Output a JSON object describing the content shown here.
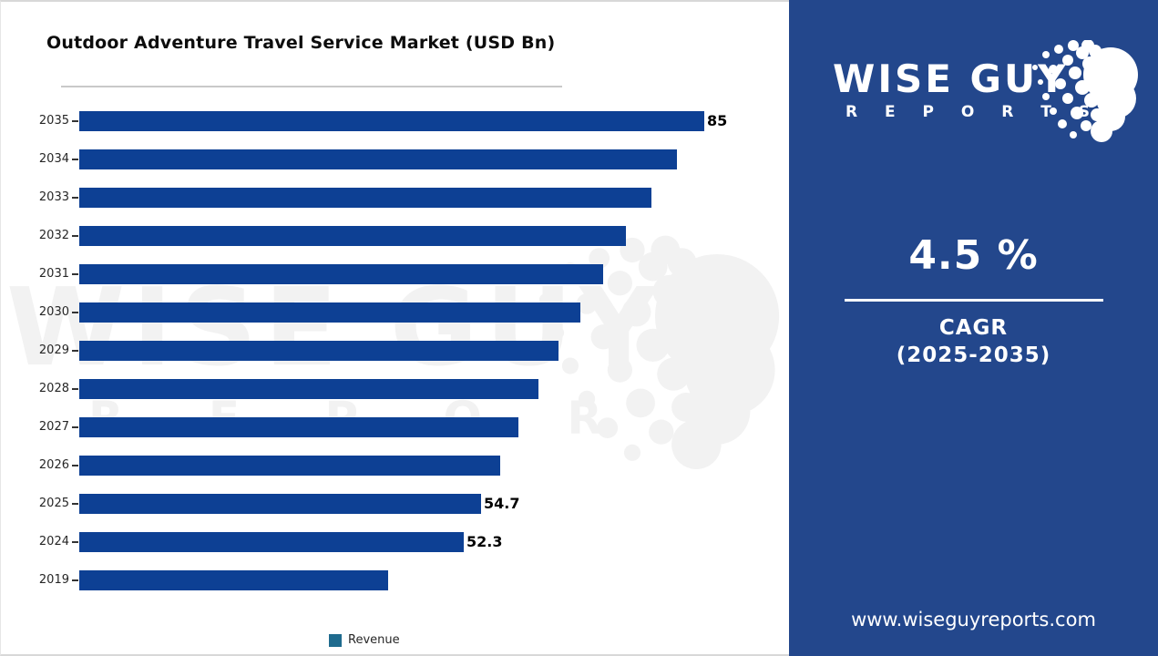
{
  "title": "Outdoor Adventure Travel Service Market (USD Bn)",
  "legend": {
    "label": "Revenue"
  },
  "colors": {
    "bar": "#0d4094",
    "legend_marker": "#1f6b8e",
    "panel_background": "#23478c",
    "watermark": "#f2f2f2"
  },
  "chart_data": {
    "type": "bar",
    "orientation": "horizontal",
    "title": "Outdoor Adventure Travel Service Market (USD Bn)",
    "categories": [
      "2035",
      "2034",
      "2033",
      "2032",
      "2031",
      "2030",
      "2029",
      "2028",
      "2027",
      "2026",
      "2025",
      "2024",
      "2019"
    ],
    "series": [
      {
        "name": "Revenue",
        "values": [
          85,
          81.3,
          77.8,
          74.4,
          71.2,
          68.2,
          65.2,
          62.4,
          59.7,
          57.2,
          54.7,
          52.3,
          42
        ]
      }
    ],
    "value_labels": {
      "2035": "85",
      "2025": "54.7",
      "2024": "52.3"
    },
    "xlim": [
      0,
      85
    ],
    "grid": false,
    "legend_position": "bottom-center"
  },
  "brand_panel": {
    "logo_line1": "WISE GUY",
    "logo_line2": "R E P O R T S",
    "head_icon": "dotted-head-profile-icon",
    "cagr_value": "4.5 %",
    "cagr_line1": "CAGR",
    "cagr_line2": "(2025-2035)",
    "website": "www.wiseguyreports.com"
  },
  "watermark": {
    "line1": "WISE GUY",
    "line2": "R E P O R T S"
  }
}
